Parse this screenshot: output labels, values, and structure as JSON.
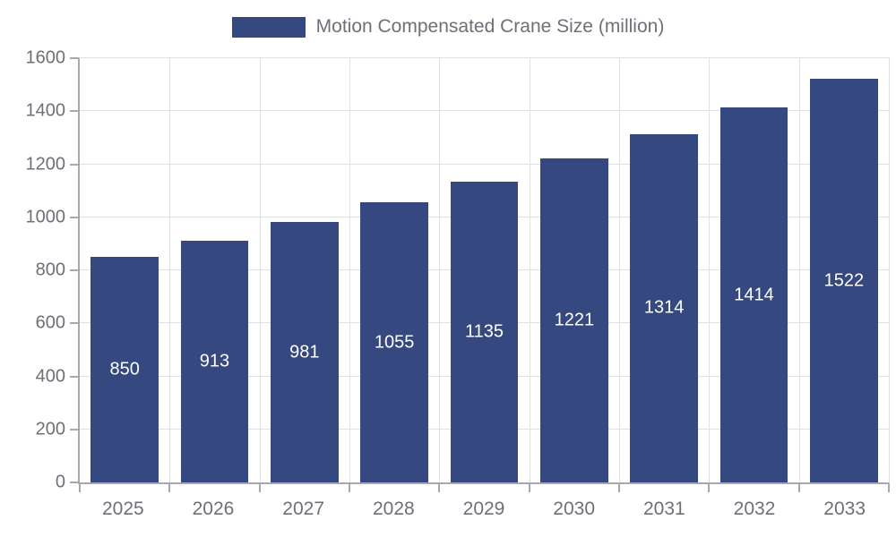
{
  "legend": {
    "label": "Motion Compensated Crane Size (million)"
  },
  "chart_data": {
    "type": "bar",
    "title": "Motion Compensated Crane Size (million)",
    "categories": [
      "2025",
      "2026",
      "2027",
      "2028",
      "2029",
      "2030",
      "2031",
      "2032",
      "2033"
    ],
    "values": [
      850,
      913,
      981,
      1055,
      1135,
      1221,
      1314,
      1414,
      1522
    ],
    "xlabel": "",
    "ylabel": "",
    "ylim": [
      0,
      1600
    ],
    "yticks": [
      0,
      200,
      400,
      600,
      800,
      1000,
      1200,
      1400,
      1600
    ],
    "grid": true,
    "legend_position": "top-center",
    "value_labels": "inside-center",
    "colors": {
      "bar": "#35487f",
      "value_text": "#ffffff",
      "axis_text": "#6e7079",
      "grid_line": "#e0e0e3",
      "axis_line": "#a7a7ad",
      "background": "#ffffff"
    }
  }
}
